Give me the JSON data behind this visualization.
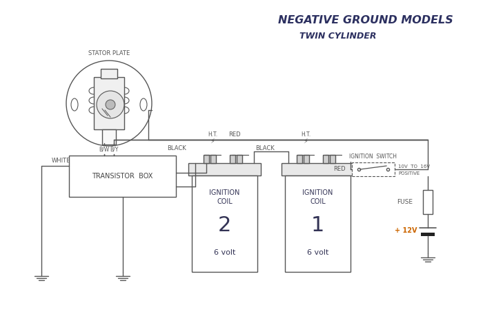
{
  "title1": "NEGATIVE GROUND MODELS",
  "title2": "TWIN CYLINDER",
  "bg_color": "#ffffff",
  "line_color": "#555555",
  "text_color": "#444444",
  "dark_color": "#333355",
  "red_color": "#888888",
  "orange_color": "#cc6600",
  "title1_color": "#2c3060",
  "title2_color": "#2c3060",
  "stator_label": "STATOR PLATE",
  "transistor_label": "TRANSISTOR  BOX",
  "fuse_label": "FUSE",
  "battery_label": "+ 12V",
  "switch_label": "IGNITION  SWITCH",
  "switch_sub1": "10V  TO  16V",
  "switch_sub2": "POSITIVE",
  "white_label": "WHITE",
  "bw_label": "B/W",
  "by_label": "B/Y",
  "black_label": "BLACK",
  "red_label": "RED",
  "ht_label": "H.T."
}
